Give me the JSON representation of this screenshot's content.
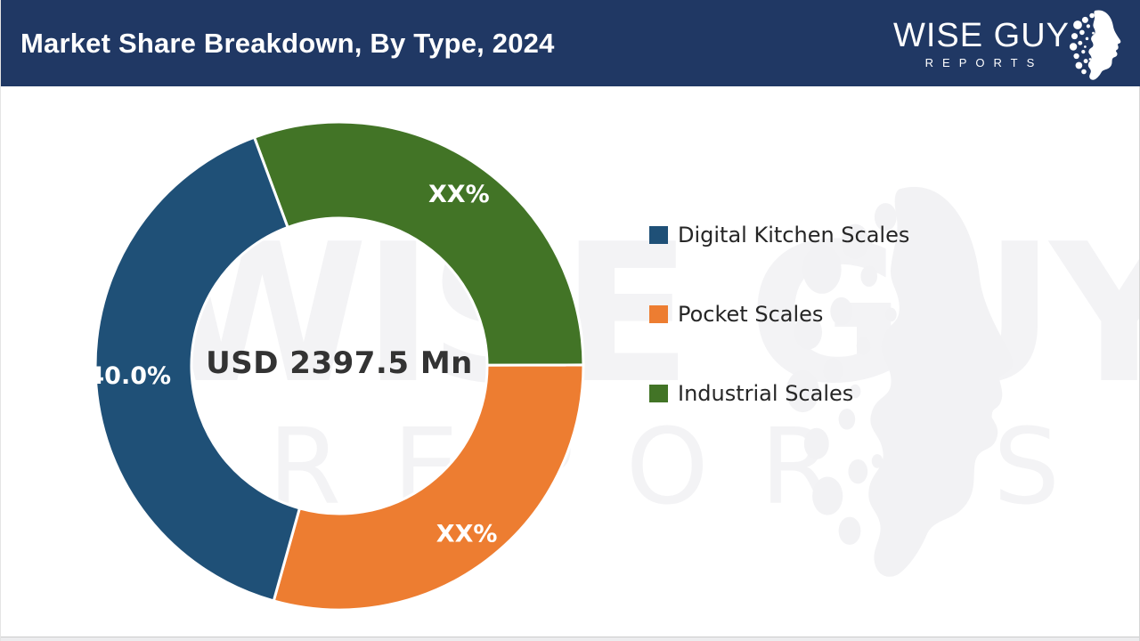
{
  "header": {
    "title": "Market Share Breakdown, By Type, 2024",
    "bg_color": "#203864",
    "logo": {
      "line1": "WISE GUY",
      "line2": "REPORTS"
    }
  },
  "watermark": {
    "line1": "WISE GUY",
    "line2": "REPORTS"
  },
  "chart_data": {
    "type": "pie",
    "subtype": "donut",
    "title": "Market Share Breakdown, By Type, 2024",
    "center_text": "USD 2397.5 Mn",
    "series": [
      {
        "name": "Digital Kitchen Scales",
        "value_pct": 40.0,
        "label": "40.0%",
        "color": "#1f5077"
      },
      {
        "name": "Pocket Scales",
        "value_pct": 29.4,
        "label": "XX%",
        "color": "#ed7d31"
      },
      {
        "name": "Industrial Scales",
        "value_pct": 30.6,
        "label": "XX%",
        "color": "#427426"
      }
    ],
    "draw_order": [
      2,
      1,
      0
    ],
    "start_angle_clockwise_from_north_deg": -20.4,
    "geometry": {
      "outer_radius_px": 274,
      "inner_radius_px": 166,
      "label_radius_px": 236,
      "slice_gap_stroke": "#ffffff"
    },
    "legend_position": "right",
    "values_note": "green and orange slices are masked as XX% in the source image; angular sizes estimated from pixels"
  }
}
